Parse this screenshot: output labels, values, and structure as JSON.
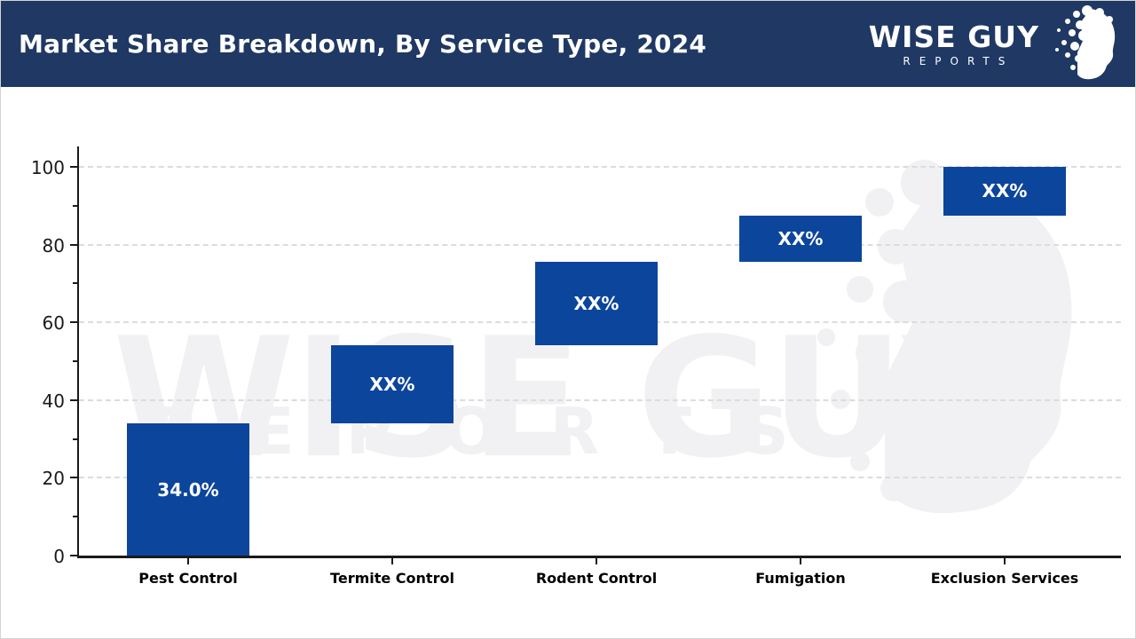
{
  "header": {
    "title": "Market Share Breakdown, By Service Type, 2024",
    "logo": {
      "line1": "WISE GUY",
      "line2": "REPORTS"
    }
  },
  "watermark": {
    "line1": "WISE GUY",
    "line2": "REPORTS"
  },
  "colors": {
    "header_bg": "#1f3864",
    "bar": "#0c459c",
    "grid": "#dcdcdc",
    "axis": "#1a1a1a",
    "bar_label": "#ffffff",
    "watermark": "#f1f1f4",
    "title_text": "#ffffff"
  },
  "chart_data": {
    "type": "bar",
    "subtype": "floating-waterfall",
    "title": "Market Share Breakdown, By Service Type, 2024",
    "categories": [
      "Pest Control",
      "Termite Control",
      "Rodent Control",
      "Fumigation",
      "Exclusion Services"
    ],
    "segments": [
      {
        "category": "Pest Control",
        "start": 0,
        "end": 34,
        "value_label": "34.0%"
      },
      {
        "category": "Termite Control",
        "start": 34,
        "end": 54,
        "value_label": "XX%"
      },
      {
        "category": "Rodent Control",
        "start": 54,
        "end": 75.5,
        "value_label": "XX%"
      },
      {
        "category": "Fumigation",
        "start": 75.5,
        "end": 87.5,
        "value_label": "XX%"
      },
      {
        "category": "Exclusion Services",
        "start": 87.5,
        "end": 100,
        "value_label": "XX%"
      }
    ],
    "yticks": [
      0,
      20,
      40,
      60,
      80,
      100
    ],
    "ylim": [
      0,
      105
    ],
    "xlabel": "",
    "ylabel": "",
    "grid": "horizontal-dashed",
    "legend": null
  }
}
